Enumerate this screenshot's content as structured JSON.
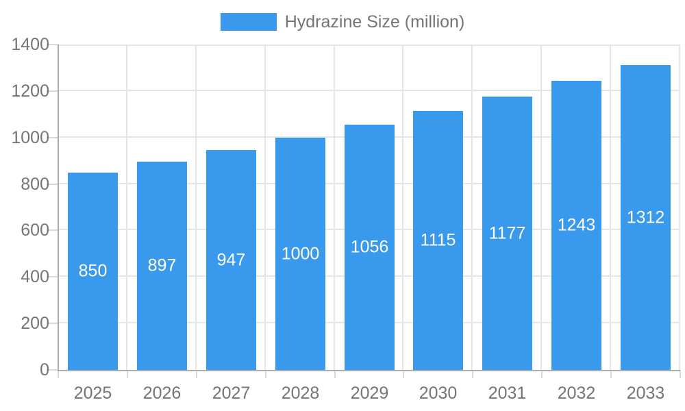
{
  "legend": {
    "label": "Hydrazine Size (million)"
  },
  "chart_data": {
    "type": "bar",
    "title": "",
    "xlabel": "",
    "ylabel": "",
    "categories": [
      "2025",
      "2026",
      "2027",
      "2028",
      "2029",
      "2030",
      "2031",
      "2032",
      "2033"
    ],
    "series": [
      {
        "name": "Hydrazine Size (million)",
        "values": [
          850,
          897,
          947,
          1000,
          1056,
          1115,
          1177,
          1243,
          1312
        ],
        "color": "#3999EC"
      }
    ],
    "value_labels_shown": true,
    "ylim": [
      0,
      1400
    ],
    "yticks": [
      0,
      200,
      400,
      600,
      800,
      1000,
      1200,
      1400
    ],
    "grid": true,
    "legend_position": "top",
    "colors": {
      "bar": "#3999EC",
      "value_label": "#FFFFFF",
      "axis_text": "#757575",
      "grid_line": "#E6E6E6",
      "tick_line": "#D9D9D9",
      "axis_line": "#ADADAD",
      "background": "#FFFFFF"
    }
  }
}
